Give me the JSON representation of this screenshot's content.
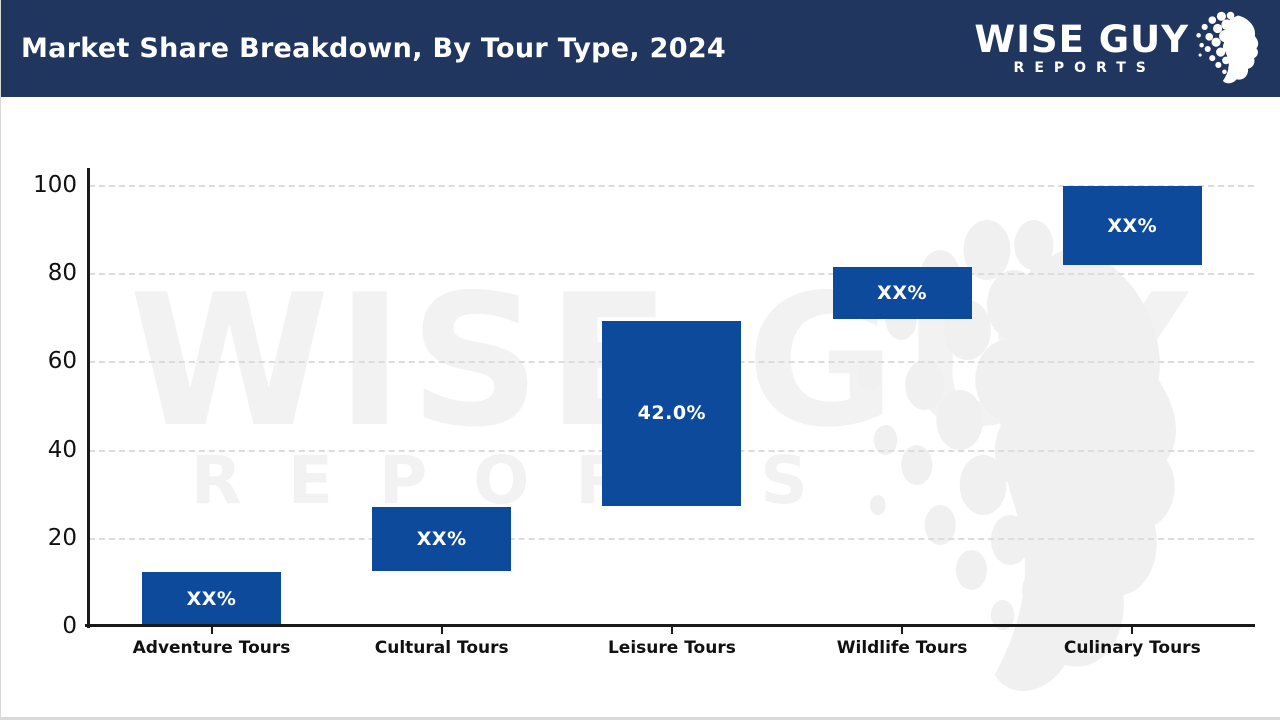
{
  "header": {
    "title": "Market Share Breakdown, By Tour Type, 2024",
    "logo": {
      "line1": "WISE GUY",
      "line2": "REPORTS"
    }
  },
  "watermark": {
    "line1": "WISE GUY",
    "line2": "REPORTS"
  },
  "chart_data": {
    "type": "bar",
    "subtype": "floating-waterfall",
    "title": "Market Share Breakdown, By Tour Type, 2024",
    "categories": [
      "Adventure Tours",
      "Cultural Tours",
      "Leisure Tours",
      "Wildlife Tours",
      "Culinary Tours"
    ],
    "segments": [
      {
        "category": "Adventure Tours",
        "start": 0,
        "end": 12.2,
        "label": "XX%"
      },
      {
        "category": "Cultural Tours",
        "start": 12.4,
        "end": 26.9,
        "label": "XX%"
      },
      {
        "category": "Leisure Tours",
        "start": 27.2,
        "end": 69.2,
        "label": "42.0%"
      },
      {
        "category": "Wildlife Tours",
        "start": 69.5,
        "end": 81.4,
        "label": "XX%"
      },
      {
        "category": "Culinary Tours",
        "start": 81.7,
        "end": 99.8,
        "label": "XX%"
      }
    ],
    "labeled_value": "42.0%",
    "y_ticks": [
      0,
      20,
      40,
      60,
      80,
      100
    ],
    "ylim": [
      0,
      104
    ],
    "xlabel": "",
    "ylabel": "",
    "grid": "horizontal-dashed",
    "legend": "none",
    "bar_color": "#0e4a9c",
    "bar_label_color": "#ffffff"
  },
  "colors": {
    "header_bg": "#21365f",
    "bar_blue": "#0e4a9c",
    "grid_gray": "#dcdcdc",
    "axis_black": "#1a1a1a",
    "watermark_gray": "#f2f2f2",
    "border_gray": "#d9d9d9"
  }
}
